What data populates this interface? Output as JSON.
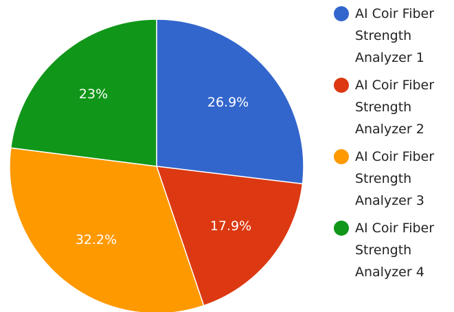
{
  "chart_data": {
    "type": "pie",
    "categories": [
      "AI Coir Fiber Strength Analyzer 1",
      "AI Coir Fiber Strength Analyzer 2",
      "AI Coir Fiber Strength Analyzer 3",
      "AI Coir Fiber Strength Analyzer 4"
    ],
    "values": [
      26.9,
      17.9,
      32.2,
      23
    ],
    "value_labels": [
      "26.9%",
      "17.9%",
      "32.2%",
      "23%"
    ],
    "colors": [
      "#3366cc",
      "#dc3912",
      "#ff9900",
      "#109618"
    ],
    "legend": "right"
  }
}
